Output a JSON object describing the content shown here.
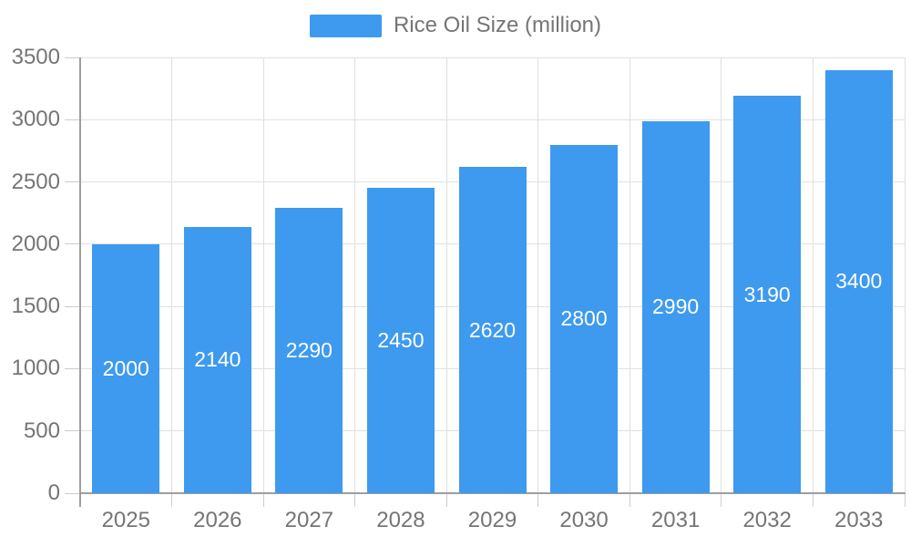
{
  "chart_data": {
    "type": "bar",
    "series_name": "Rice Oil Size (million)",
    "categories": [
      "2025",
      "2026",
      "2027",
      "2028",
      "2029",
      "2030",
      "2031",
      "2032",
      "2033"
    ],
    "values": [
      2000,
      2140,
      2290,
      2450,
      2620,
      2800,
      2990,
      3190,
      3400
    ],
    "ylim": [
      0,
      3500
    ],
    "yticks": [
      0,
      500,
      1000,
      1500,
      2000,
      2500,
      3000,
      3500
    ],
    "grid": "on",
    "legend_position": "top-center",
    "bar_value_labels": "inside-centered-white",
    "colors": {
      "bar": "#3d9aef",
      "bar_label": "#ffffff",
      "axis_text": "#757575",
      "grid_line": "#e0e0e0",
      "axis_line": "#9e9e9e",
      "tick": "#cccccc",
      "background": "#ffffff"
    }
  }
}
